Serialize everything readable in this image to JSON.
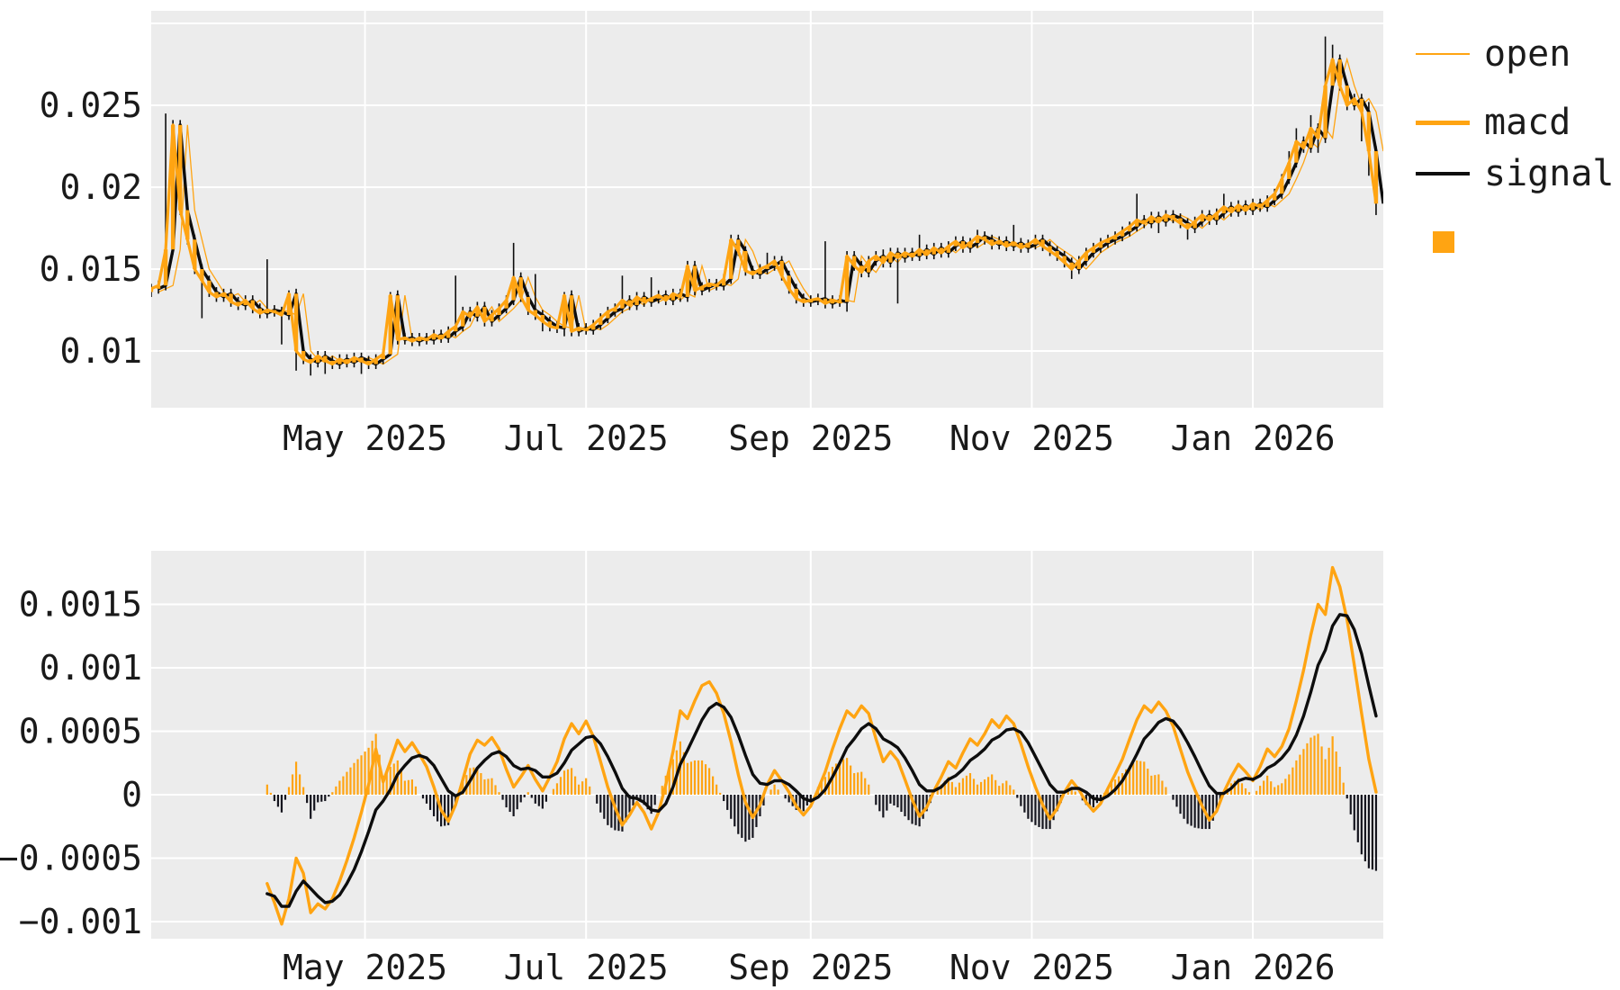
{
  "colors": {
    "plot_bg": "#ececec",
    "grid": "#ffffff",
    "orange": "#ffa412",
    "black": "#0d0d0d",
    "hist_negative": "#14141d",
    "tick_label": "#1a1a1a"
  },
  "legend": {
    "entries": [
      {
        "label": "open",
        "swatch": "thin-orange-line"
      },
      {
        "label": "macd",
        "swatch": "thick-orange-line"
      },
      {
        "label": "signal",
        "swatch": "black-line"
      },
      {
        "label": "",
        "swatch": "orange-square"
      }
    ]
  },
  "chart_data": [
    {
      "type": "candlestick-with-lines",
      "title": "",
      "value_scale": 0.0001,
      "day_span": [
        0,
        340
      ],
      "day_step": 2,
      "x_axis": {
        "tick_days": [
          59,
          120,
          182,
          243,
          304
        ],
        "tick_labels": [
          "May 2025",
          "Jul 2025",
          "Sep 2025",
          "Nov 2025",
          "Jan 2026"
        ]
      },
      "y_axis": {
        "tick_values": [
          100,
          150,
          200,
          250
        ],
        "tick_labels": [
          "0.01",
          "0.015",
          "0.02",
          "0.025"
        ],
        "extra_gridlines": [
          300
        ],
        "ylim": [
          0.00655,
          0.0308
        ]
      },
      "first_open": 136,
      "close": [
        138,
        140,
        162,
        238,
        186,
        168,
        150,
        143,
        136,
        133,
        135,
        130,
        128,
        131,
        126,
        123,
        125,
        124,
        122,
        135,
        100,
        95,
        93,
        97,
        94,
        92,
        95,
        93,
        96,
        94,
        92,
        95,
        98,
        134,
        107,
        108,
        106,
        108,
        107,
        110,
        108,
        112,
        115,
        124,
        121,
        127,
        118,
        122,
        126,
        131,
        145,
        133,
        125,
        122,
        118,
        115,
        114,
        134,
        112,
        114,
        113,
        116,
        120,
        124,
        126,
        131,
        128,
        133,
        130,
        132,
        134,
        131,
        135,
        133,
        152,
        137,
        139,
        141,
        140,
        144,
        168,
        161,
        149,
        147,
        150,
        152,
        155,
        146,
        138,
        132,
        130,
        131,
        132,
        129,
        131,
        130,
        158,
        152,
        148,
        155,
        158,
        154,
        160,
        157,
        160,
        158,
        162,
        159,
        163,
        160,
        164,
        167,
        163,
        166,
        170,
        168,
        165,
        167,
        164,
        166,
        163,
        165,
        168,
        164,
        161,
        158,
        154,
        150,
        155,
        160,
        163,
        166,
        168,
        170,
        173,
        176,
        180,
        178,
        182,
        179,
        183,
        181,
        178,
        175,
        179,
        183,
        180,
        184,
        188,
        185,
        189,
        186,
        190,
        188,
        192,
        196,
        205,
        215,
        228,
        224,
        236,
        230,
        262,
        278,
        262,
        250,
        254,
        246,
        222,
        190
      ],
      "high_overrides": {
        "2": 245,
        "5": 172,
        "16": 156,
        "19": 137,
        "33": 136,
        "42": 146,
        "50": 166,
        "53": 147,
        "57": 136,
        "65": 146,
        "69": 145,
        "74": 155,
        "80": 171,
        "85": 160,
        "93": 167,
        "101": 162,
        "106": 171,
        "114": 174,
        "119": 177,
        "136": 196,
        "148": 196,
        "157": 222,
        "158": 236,
        "160": 244,
        "162": 292,
        "163": 287,
        "165": 259,
        "168": 252
      },
      "low_overrides": {
        "7": 120,
        "18": 104,
        "20": 88,
        "22": 85,
        "24": 86,
        "29": 86,
        "33": 101,
        "54": 112,
        "57": 109,
        "96": 124,
        "103": 129,
        "127": 144,
        "139": 172,
        "143": 168,
        "161": 221,
        "167": 228,
        "168": 207,
        "169": 183
      }
    },
    {
      "type": "macd-histogram",
      "title": "",
      "value_scale": 0.0001,
      "start_day": 32,
      "day_step": 2,
      "x_axis": {
        "tick_days": [
          59,
          120,
          182,
          243,
          304
        ],
        "tick_labels": [
          "May 2025",
          "Jul 2025",
          "Sep 2025",
          "Nov 2025",
          "Jan 2026"
        ]
      },
      "y_axis": {
        "tick_values": [
          -10,
          -5,
          0,
          5,
          10,
          15
        ],
        "tick_labels": [
          "−0.001",
          "−0.0005",
          "0",
          "0.0005",
          "0.001",
          "0.0015"
        ],
        "ylim": [
          -0.00114,
          0.00193
        ]
      },
      "macd": [
        -7.0,
        -8.5,
        -10.2,
        -8.2,
        -5.0,
        -6.2,
        -9.3,
        -8.6,
        -9.0,
        -8.2,
        -6.8,
        -5.2,
        -3.4,
        -1.4,
        0.8,
        3.6,
        1.0,
        2.6,
        4.3,
        3.4,
        4.1,
        3.2,
        2.2,
        0.6,
        -1.2,
        -2.1,
        -0.8,
        1.2,
        3.2,
        4.3,
        3.9,
        4.5,
        3.6,
        2.0,
        0.6,
        1.4,
        2.3,
        1.2,
        0.3,
        1.4,
        2.6,
        4.4,
        5.6,
        4.8,
        5.8,
        4.6,
        2.6,
        0.6,
        -1.0,
        -2.4,
        -1.6,
        -0.6,
        -1.4,
        -2.7,
        -1.4,
        0.8,
        3.4,
        6.6,
        6.0,
        7.4,
        8.6,
        8.9,
        8.0,
        6.4,
        4.2,
        1.6,
        -0.6,
        -1.8,
        -0.8,
        0.8,
        1.9,
        1.1,
        0.2,
        -0.9,
        -1.6,
        -0.9,
        0.4,
        1.8,
        3.6,
        5.2,
        6.6,
        6.1,
        7.0,
        6.4,
        4.4,
        2.6,
        3.4,
        2.7,
        1.2,
        -0.4,
        -1.7,
        -1.0,
        0.3,
        1.4,
        2.6,
        2.1,
        3.3,
        4.4,
        3.9,
        4.8,
        5.9,
        5.3,
        6.2,
        5.6,
        4.0,
        2.2,
        0.6,
        -0.8,
        -1.9,
        -1.1,
        0.2,
        1.1,
        0.4,
        -0.6,
        -1.3,
        -0.7,
        0.5,
        1.6,
        2.8,
        4.4,
        5.9,
        7.0,
        6.5,
        7.3,
        6.6,
        5.4,
        3.6,
        1.8,
        0.4,
        -0.9,
        -2.0,
        -1.3,
        0.2,
        1.4,
        2.4,
        1.8,
        1.1,
        2.2,
        3.6,
        3.0,
        3.8,
        5.2,
        7.4,
        9.8,
        12.6,
        15.0,
        14.2,
        17.9,
        16.4,
        13.8,
        10.2,
        6.4,
        2.8,
        0.2
      ],
      "signal": [
        -7.8,
        -8.0,
        -8.8,
        -8.8,
        -7.6,
        -6.8,
        -7.4,
        -8.0,
        -8.5,
        -8.4,
        -7.9,
        -7.0,
        -5.9,
        -4.5,
        -2.9,
        -1.2,
        -0.5,
        0.4,
        1.6,
        2.3,
        2.9,
        3.1,
        2.9,
        2.3,
        1.3,
        0.3,
        -0.1,
        0.2,
        1.1,
        2.1,
        2.7,
        3.2,
        3.4,
        3.0,
        2.3,
        2.0,
        2.1,
        1.9,
        1.4,
        1.4,
        1.7,
        2.5,
        3.5,
        4.0,
        4.5,
        4.6,
        4.0,
        3.0,
        1.8,
        0.5,
        -0.2,
        -0.3,
        -0.6,
        -1.2,
        -1.3,
        -0.7,
        0.6,
        2.4,
        3.5,
        4.7,
        5.9,
        6.8,
        7.2,
        6.9,
        6.1,
        4.7,
        3.1,
        1.6,
        0.9,
        0.8,
        1.1,
        1.1,
        0.8,
        0.3,
        -0.3,
        -0.5,
        -0.2,
        0.4,
        1.4,
        2.5,
        3.7,
        4.4,
        5.2,
        5.6,
        5.2,
        4.4,
        4.1,
        3.7,
        2.9,
        1.9,
        0.8,
        0.3,
        0.3,
        0.6,
        1.2,
        1.5,
        2.0,
        2.7,
        3.1,
        3.6,
        4.3,
        4.6,
        5.1,
        5.2,
        4.9,
        4.1,
        3.0,
        1.9,
        0.8,
        0.2,
        0.2,
        0.5,
        0.5,
        0.2,
        -0.3,
        -0.4,
        -0.1,
        0.4,
        1.1,
        2.1,
        3.2,
        4.4,
        5.0,
        5.7,
        6.0,
        5.8,
        5.1,
        4.1,
        3.0,
        1.8,
        0.7,
        0.1,
        0.1,
        0.5,
        1.1,
        1.3,
        1.2,
        1.5,
        2.1,
        2.4,
        2.9,
        3.6,
        4.7,
        6.2,
        8.1,
        10.2,
        11.4,
        13.3,
        14.2,
        14.1,
        13.0,
        11.1,
        8.6,
        6.2
      ],
      "histogram": "macd minus signal, drawn as daily bars"
    }
  ]
}
